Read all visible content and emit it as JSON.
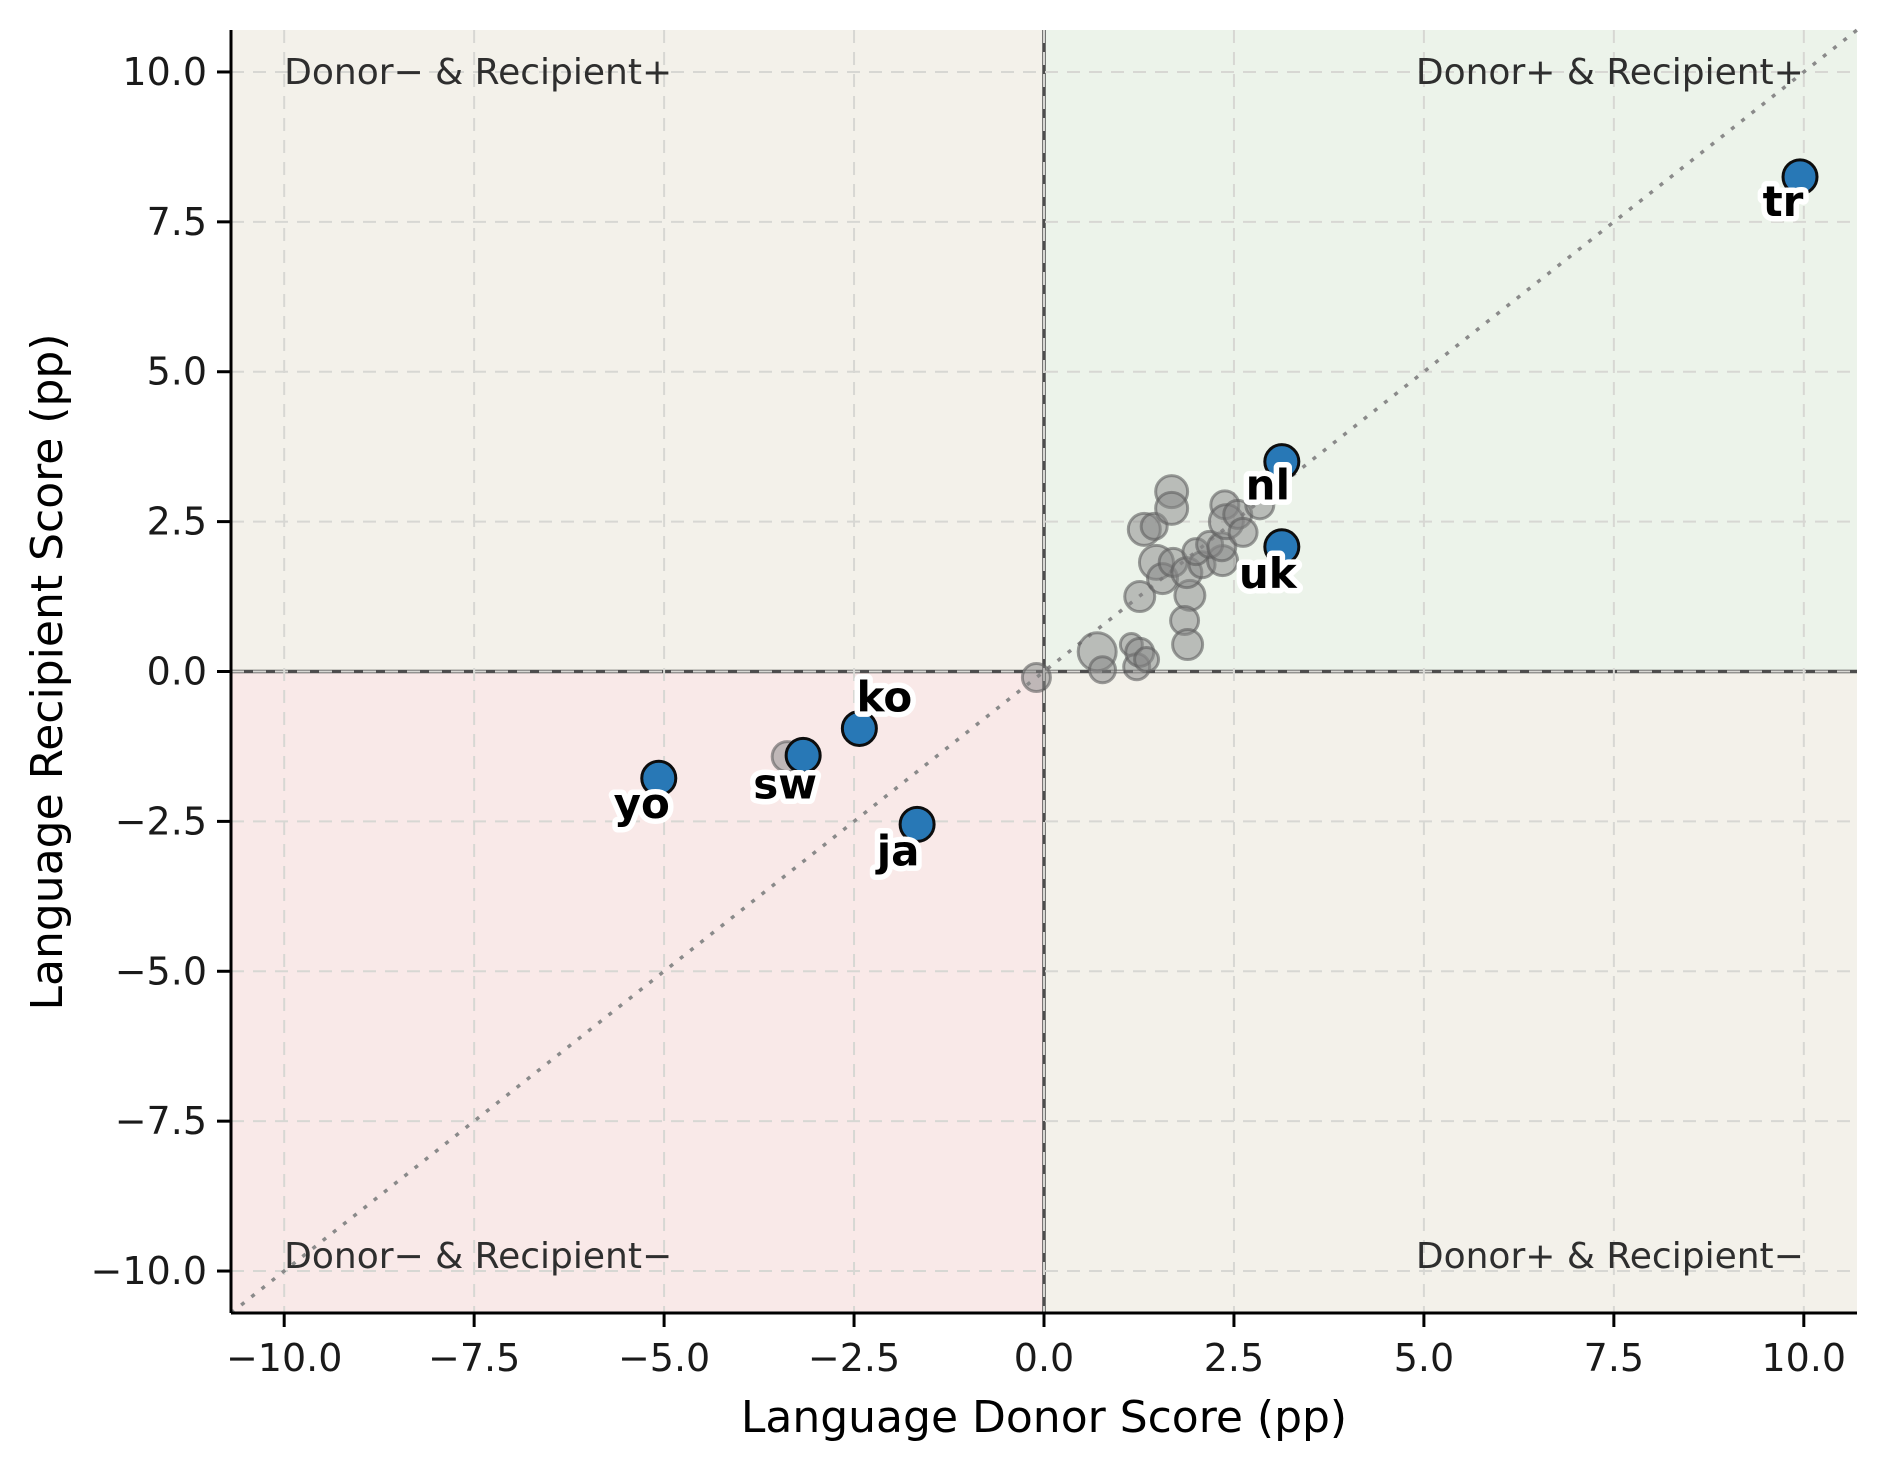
{
  "chart_data": {
    "type": "scatter",
    "title": "",
    "xlabel": "Language Donor Score (pp)",
    "ylabel": "Language Recipient Score (pp)",
    "xlim": [
      -10.7,
      10.7
    ],
    "ylim": [
      -10.7,
      10.7
    ],
    "grid": true,
    "xticks": [
      -10,
      -7.5,
      -5,
      -2.5,
      0,
      2.5,
      5,
      7.5,
      10
    ],
    "xtick_labels": [
      "−10.0",
      "−7.5",
      "−5.0",
      "−2.5",
      "0.0",
      "2.5",
      "5.0",
      "7.5",
      "10.0"
    ],
    "yticks": [
      -10,
      -7.5,
      -5,
      -2.5,
      0,
      2.5,
      5,
      7.5,
      10
    ],
    "ytick_labels": [
      "−10.0",
      "−7.5",
      "−5.0",
      "−2.5",
      "0.0",
      "2.5",
      "5.0",
      "7.5",
      "10.0"
    ],
    "identity_line": {
      "show": true,
      "style": "dotted",
      "color": "#8a8a8a"
    },
    "zero_lines": {
      "show": true,
      "color": "#4d4d4d"
    },
    "colors": {
      "highlight_fill": "#2878b6",
      "highlight_edge": "#0d0d0d",
      "background_fill": "rgba(133,133,133,0.50)",
      "background_edge": "rgba(95,95,95,0.60)",
      "gridline": "#d7d7d3",
      "spine": "#000000"
    },
    "quadrants": [
      {
        "id": "top-left",
        "label": "Donor− & Recipient+",
        "color": "#f3f1ea",
        "x": -10,
        "y": 10.0,
        "anchor": "start"
      },
      {
        "id": "top-right",
        "label": "Donor+ & Recipient+",
        "color": "#ecf3ea",
        "x": 10,
        "y": 10.0,
        "anchor": "end"
      },
      {
        "id": "bottom-left",
        "label": "Donor− & Recipient−",
        "color": "#f9e9e8",
        "x": -10,
        "y": -9.75,
        "anchor": "start"
      },
      {
        "id": "bottom-right",
        "label": "Donor+ & Recipient−",
        "color": "#f3f1ea",
        "x": 10,
        "y": -9.75,
        "anchor": "end"
      }
    ],
    "series": [
      {
        "name": "highlighted_languages",
        "points": [
          {
            "label": "tr",
            "x": 9.95,
            "y": 8.25,
            "r": 17,
            "dx": -17,
            "dy": 25
          },
          {
            "label": "nl",
            "x": 3.13,
            "y": 3.5,
            "r": 17,
            "dx": -14,
            "dy": 24
          },
          {
            "label": "uk",
            "x": 3.13,
            "y": 2.08,
            "r": 17,
            "dx": -14,
            "dy": 27
          },
          {
            "label": "ko",
            "x": -2.43,
            "y": -0.95,
            "r": 17,
            "dx": 25,
            "dy": -31
          },
          {
            "label": "sw",
            "x": -3.17,
            "y": -1.4,
            "r": 17,
            "dx": -18,
            "dy": 29
          },
          {
            "label": "yo",
            "x": -5.07,
            "y": -1.78,
            "r": 17,
            "dx": -17,
            "dy": 26
          },
          {
            "label": "ja",
            "x": -1.67,
            "y": -2.55,
            "r": 17,
            "dx": -19,
            "dy": 27
          }
        ]
      },
      {
        "name": "other_languages",
        "points": [
          [
            -0.1,
            -0.1,
            14
          ],
          [
            0.7,
            0.33,
            19
          ],
          [
            0.77,
            0.03,
            13
          ],
          [
            1.15,
            0.45,
            11
          ],
          [
            1.22,
            0.08,
            13
          ],
          [
            1.26,
            0.32,
            14
          ],
          [
            1.35,
            0.2,
            12
          ],
          [
            1.26,
            1.25,
            15
          ],
          [
            1.92,
            1.27,
            15
          ],
          [
            1.85,
            0.85,
            14
          ],
          [
            1.89,
            0.45,
            15
          ],
          [
            1.48,
            1.82,
            17
          ],
          [
            1.56,
            1.55,
            15
          ],
          [
            1.7,
            1.82,
            14
          ],
          [
            1.88,
            1.65,
            15
          ],
          [
            2.08,
            1.78,
            13
          ],
          [
            2.35,
            1.85,
            15
          ],
          [
            2.0,
            2.0,
            13
          ],
          [
            2.18,
            2.12,
            13
          ],
          [
            2.34,
            2.08,
            14
          ],
          [
            1.32,
            2.37,
            16
          ],
          [
            1.45,
            2.42,
            13
          ],
          [
            1.68,
            3.0,
            16
          ],
          [
            1.68,
            2.72,
            16
          ],
          [
            2.38,
            2.78,
            14
          ],
          [
            2.4,
            2.5,
            17
          ],
          [
            2.55,
            2.62,
            14
          ],
          [
            2.62,
            2.32,
            14
          ],
          [
            2.84,
            2.78,
            14
          ],
          [
            -3.38,
            -1.42,
            15
          ]
        ]
      }
    ]
  }
}
